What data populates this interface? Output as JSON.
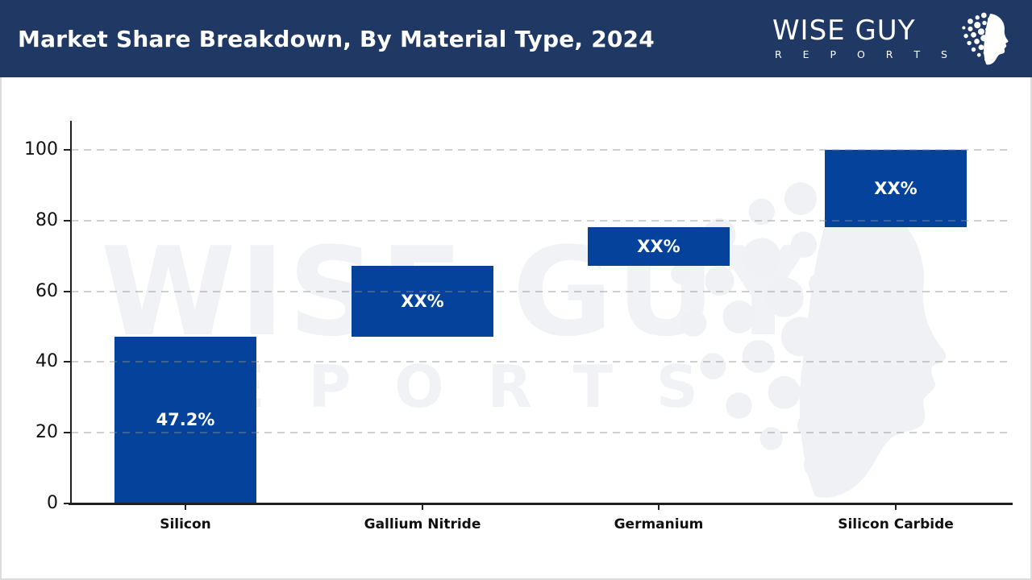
{
  "header": {
    "logo": {
      "line1": "WISE GUY",
      "line2": "R E P O R T S"
    }
  },
  "watermark": {
    "line1": "WISE GUY",
    "line2": "REPORTS"
  },
  "colors": {
    "header_bg": "#1f3864",
    "bar_blue": "#05429b",
    "axis": "#1f1f1f",
    "watermark_gray": "#f1f2f5"
  },
  "chart_data": {
    "type": "bar",
    "subtype": "waterfall",
    "title": "Market Share Breakdown, By Material Type, 2024",
    "categories": [
      "Silicon",
      "Gallium Nitride",
      "Germanium",
      "Silicon Carbide"
    ],
    "series": [
      {
        "name": "Market share (%)",
        "starts": [
          0,
          47.2,
          67.2,
          78.2
        ],
        "ends": [
          47.2,
          67.2,
          78.2,
          100
        ]
      }
    ],
    "bar_labels": [
      "47.2%",
      "XX%",
      "XX%",
      "XX%"
    ],
    "xlabel": "",
    "ylabel": "",
    "yticks": [
      0,
      20,
      40,
      60,
      80,
      100
    ],
    "ylim": [
      0,
      108
    ],
    "grid": "horizontal-dashed",
    "legend": "none",
    "bar_color": "#05429b"
  }
}
